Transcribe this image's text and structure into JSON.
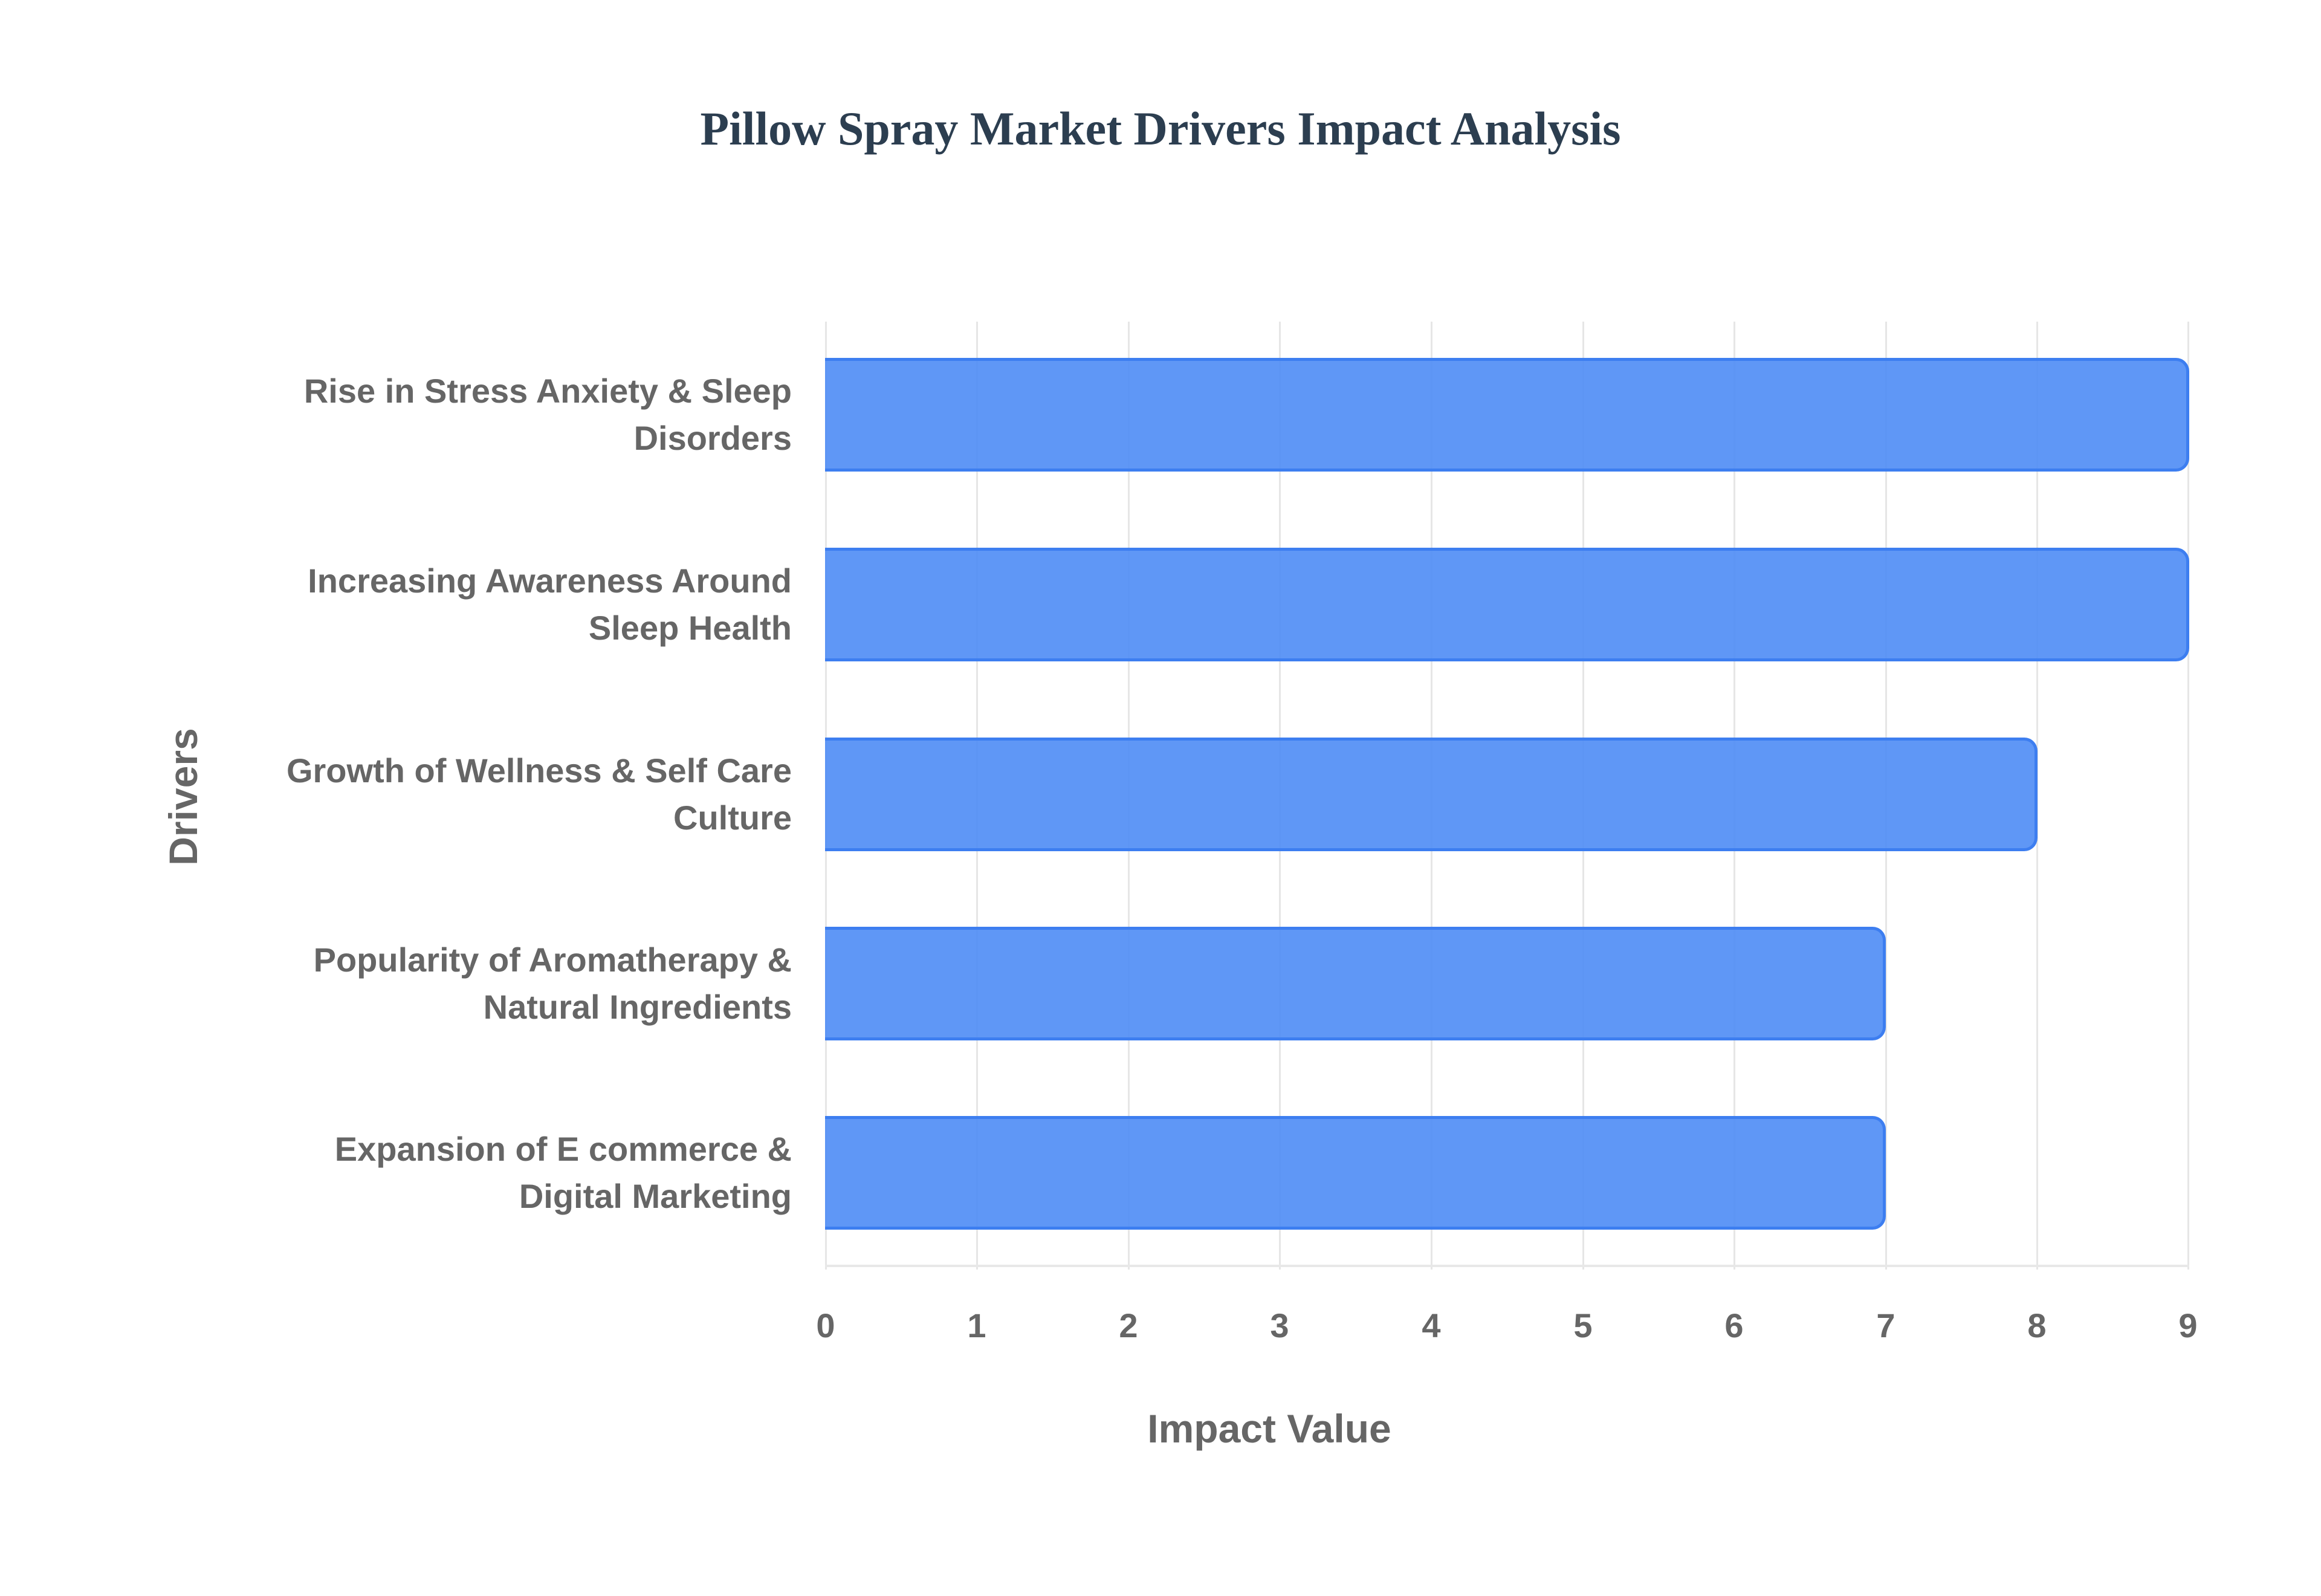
{
  "chart_data": {
    "type": "bar",
    "orientation": "horizontal",
    "title": "Pillow Spray Market Drivers Impact Analysis",
    "xlabel": "Impact Value",
    "ylabel": "Drivers",
    "xlim": [
      0,
      9
    ],
    "x_ticks": [
      "0",
      "1",
      "2",
      "3",
      "4",
      "5",
      "6",
      "7",
      "8",
      "9"
    ],
    "grid": true,
    "legend": null,
    "categories": [
      "Rise in Stress Anxiety & Sleep Disorders",
      "Increasing Awareness Around Sleep Health",
      "Growth of Wellness & Self Care Culture",
      "Popularity of Aromatherapy & Natural Ingredients",
      "Expansion of E commerce & Digital Marketing"
    ],
    "category_lines": [
      [
        "Rise in Stress Anxiety & Sleep",
        "Disorders"
      ],
      [
        "Increasing Awareness Around",
        "Sleep Health"
      ],
      [
        "Growth of Wellness & Self Care",
        "Culture"
      ],
      [
        "Popularity of Aromatherapy &",
        "Natural Ingredients"
      ],
      [
        "Expansion of E commerce &",
        "Digital Marketing"
      ]
    ],
    "values": [
      9,
      9,
      8,
      7,
      7
    ],
    "colors": {
      "bar_fill": "#5f9af5",
      "bar_border": "#3d7ef0",
      "title": "#2c3e50",
      "text": "#666666",
      "grid": "#e6e6e6"
    }
  }
}
